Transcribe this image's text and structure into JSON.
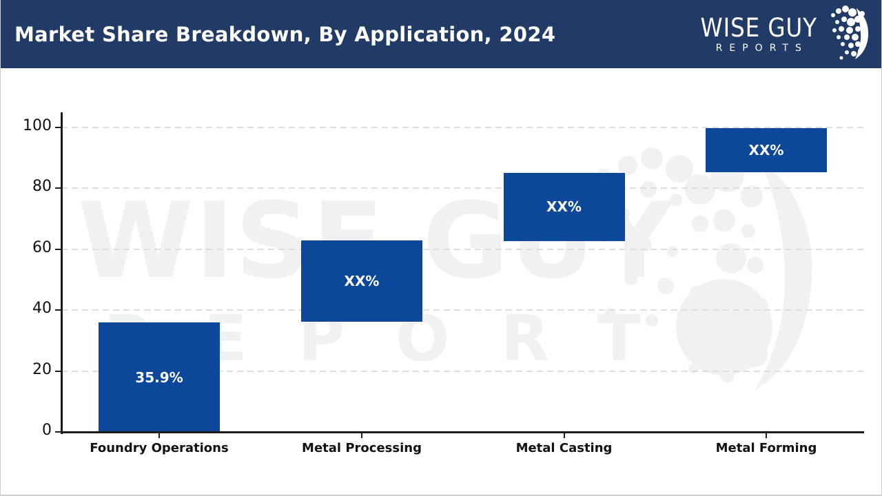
{
  "header": {
    "title": "Market Share Breakdown, By Application, 2024",
    "logo": {
      "line1": "WISE GUY",
      "line2": "REPORTS"
    }
  },
  "watermark": {
    "line1": "WISE GUY",
    "line2": "REPORTS"
  },
  "colors": {
    "header_bg": "#213a66",
    "bar": "#0d4799",
    "bar_label": "#ffffff",
    "grid": "#dedede",
    "axis": "#1c1c1c",
    "watermark": "#eff1f3"
  },
  "chart_data": {
    "type": "bar",
    "subtype": "floating-waterfall",
    "title": "Market Share Breakdown, By Application, 2024",
    "categories": [
      "Foundry Operations",
      "Metal Processing",
      "Metal Casting",
      "Metal Forming"
    ],
    "bars": [
      {
        "category": "Foundry Operations",
        "start": 0,
        "end": 35.9,
        "label": "35.9%"
      },
      {
        "category": "Metal Processing",
        "start": 36.1,
        "end": 62.9,
        "label": "XX%"
      },
      {
        "category": "Metal Casting",
        "start": 62.7,
        "end": 85.1,
        "label": "XX%"
      },
      {
        "category": "Metal Forming",
        "start": 85.2,
        "end": 99.8,
        "label": "XX%"
      }
    ],
    "xlabel": "",
    "ylabel": "",
    "yticks": [
      0,
      20,
      40,
      60,
      80,
      100
    ],
    "ylim": [
      0,
      105
    ],
    "grid": "horizontal-dashed",
    "legend": "none",
    "bar_color": "#0d4799",
    "label_color": "#ffffff"
  }
}
